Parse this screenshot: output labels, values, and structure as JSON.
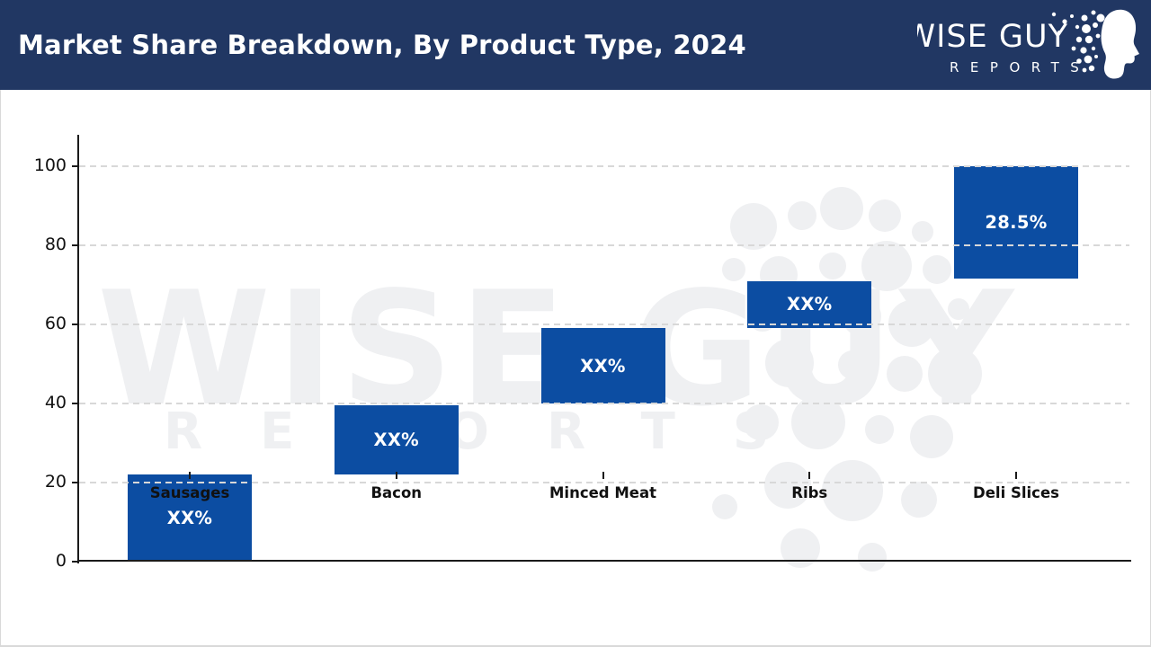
{
  "header": {
    "title": "Market Share Breakdown, By Product Type, 2024",
    "logo": {
      "primary": "WISE GUY",
      "secondary": "REPORTS"
    }
  },
  "watermark": {
    "primary": "WISE GUY",
    "secondary": "REPORTS"
  },
  "colors": {
    "header_bg": "#213763",
    "bar": "#0c4da2",
    "grid": "#d8d8d8",
    "axis": "#1a1a1a",
    "watermark": "#eff0f2",
    "bar_label_text": "#ffffff",
    "title_text": "#ffffff"
  },
  "chart_data": {
    "type": "bar",
    "subtype": "waterfall",
    "title": "Market Share Breakdown, By Product Type, 2024",
    "categories": [
      "Sausages",
      "Bacon",
      "Minced Meat",
      "Ribs",
      "Deli Slices"
    ],
    "segments": [
      {
        "category": "Sausages",
        "start": 0,
        "end": 22,
        "label": "XX%"
      },
      {
        "category": "Bacon",
        "start": 22,
        "end": 39.5,
        "label": "XX%"
      },
      {
        "category": "Minced Meat",
        "start": 40,
        "end": 59,
        "label": "XX%"
      },
      {
        "category": "Ribs",
        "start": 59,
        "end": 71,
        "label": "XX%"
      },
      {
        "category": "Deli Slices",
        "start": 71.5,
        "end": 100,
        "label": "28.5%"
      }
    ],
    "yticks": [
      0,
      20,
      40,
      60,
      80,
      100
    ],
    "ylim": [
      0,
      108
    ],
    "xlabel": "",
    "ylabel": "",
    "grid": "horizontal-dashed",
    "legend": "none"
  }
}
